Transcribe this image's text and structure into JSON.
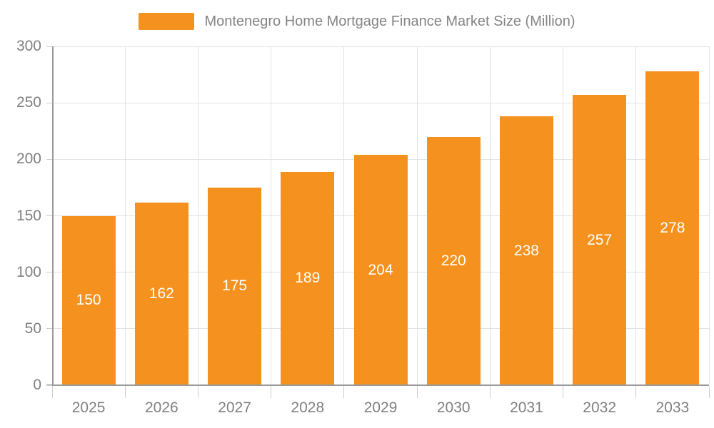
{
  "chart_data": {
    "type": "bar",
    "title": "Montenegro Home Mortgage Finance Market Size (Million)",
    "categories": [
      "2025",
      "2026",
      "2027",
      "2028",
      "2029",
      "2030",
      "2031",
      "2032",
      "2033"
    ],
    "values": [
      150,
      162,
      175,
      189,
      204,
      220,
      238,
      257,
      278
    ],
    "xlabel": "",
    "ylabel": "",
    "ylim": [
      0,
      300
    ],
    "yticks": [
      0,
      50,
      100,
      150,
      200,
      250,
      300
    ],
    "grid": "on",
    "legend_position": "top-center",
    "value_labels": "inside-center-white"
  },
  "colors": {
    "bar": "#F5921F",
    "grid": "#e3e3e3",
    "tick": "#cccccc",
    "axis": "#9a9a9a",
    "text": "#808080",
    "title": "#848484",
    "bar_label": "#ffffff",
    "background": "#ffffff"
  }
}
